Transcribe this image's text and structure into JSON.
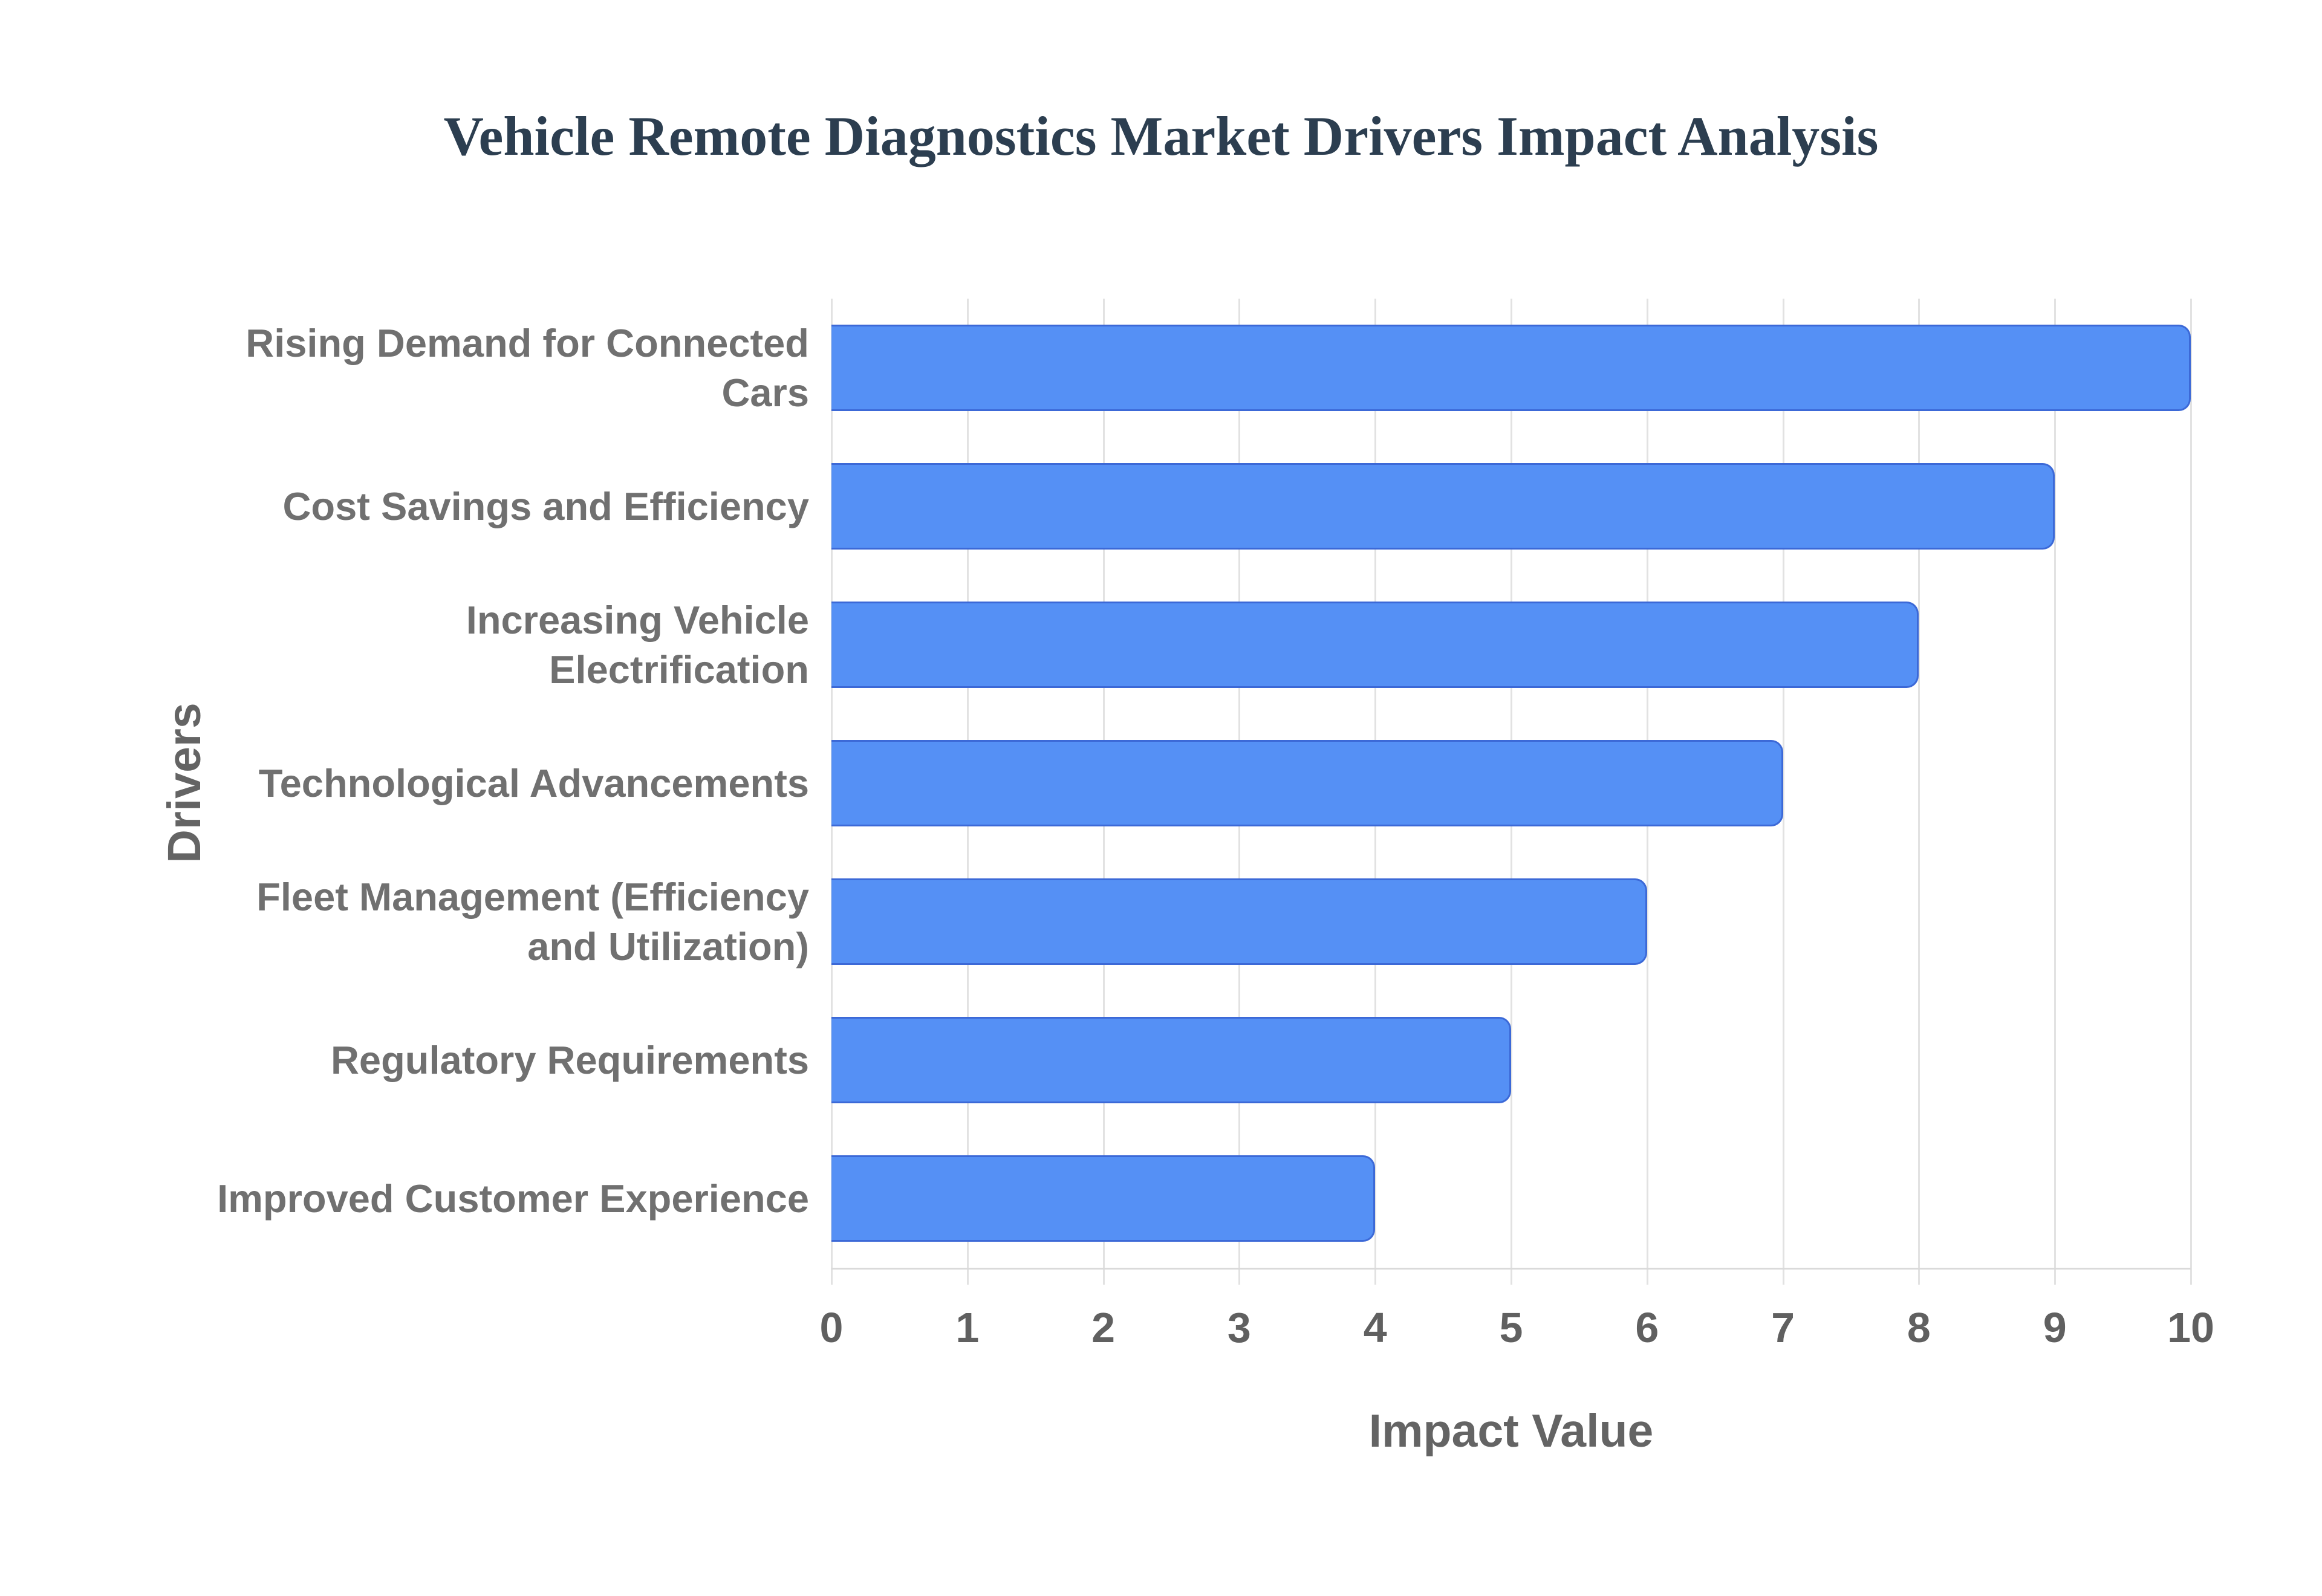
{
  "title": "Vehicle Remote Diagnostics Market Drivers Impact Analysis",
  "colors": {
    "background": "#ffffff",
    "title": "#2c3e50",
    "bar_fill": "#5590f5",
    "bar_border": "#3c69d7",
    "gridline": "#e2e2e2",
    "axis_line": "#dadada",
    "category_label": "#707070",
    "tick_label": "#606060",
    "axis_title": "#646464"
  },
  "chart_data": {
    "type": "bar",
    "orientation": "horizontal",
    "title": "Vehicle Remote Diagnostics Market Drivers Impact Analysis",
    "xlabel": "Impact Value",
    "ylabel": "Drivers",
    "categories": [
      "Rising Demand for Connected Cars",
      "Cost Savings and Efficiency",
      "Increasing Vehicle Electrification",
      "Technological Advancements",
      "Fleet Management (Efficiency and Utilization)",
      "Regulatory Requirements",
      "Improved Customer Experience"
    ],
    "category_lines": [
      [
        "Rising Demand for Connected",
        "Cars"
      ],
      [
        "Cost Savings and Efficiency"
      ],
      [
        "Increasing Vehicle",
        "Electrification"
      ],
      [
        "Technological Advancements"
      ],
      [
        "Fleet Management (Efficiency",
        "and Utilization)"
      ],
      [
        "Regulatory Requirements"
      ],
      [
        "Improved Customer Experience"
      ]
    ],
    "values": [
      10,
      9,
      8,
      7,
      6,
      5,
      4
    ],
    "xlim": [
      0,
      10
    ],
    "xticks": [
      0,
      1,
      2,
      3,
      4,
      5,
      6,
      7,
      8,
      9,
      10
    ],
    "grid": "vertical-only",
    "legend": "none"
  }
}
